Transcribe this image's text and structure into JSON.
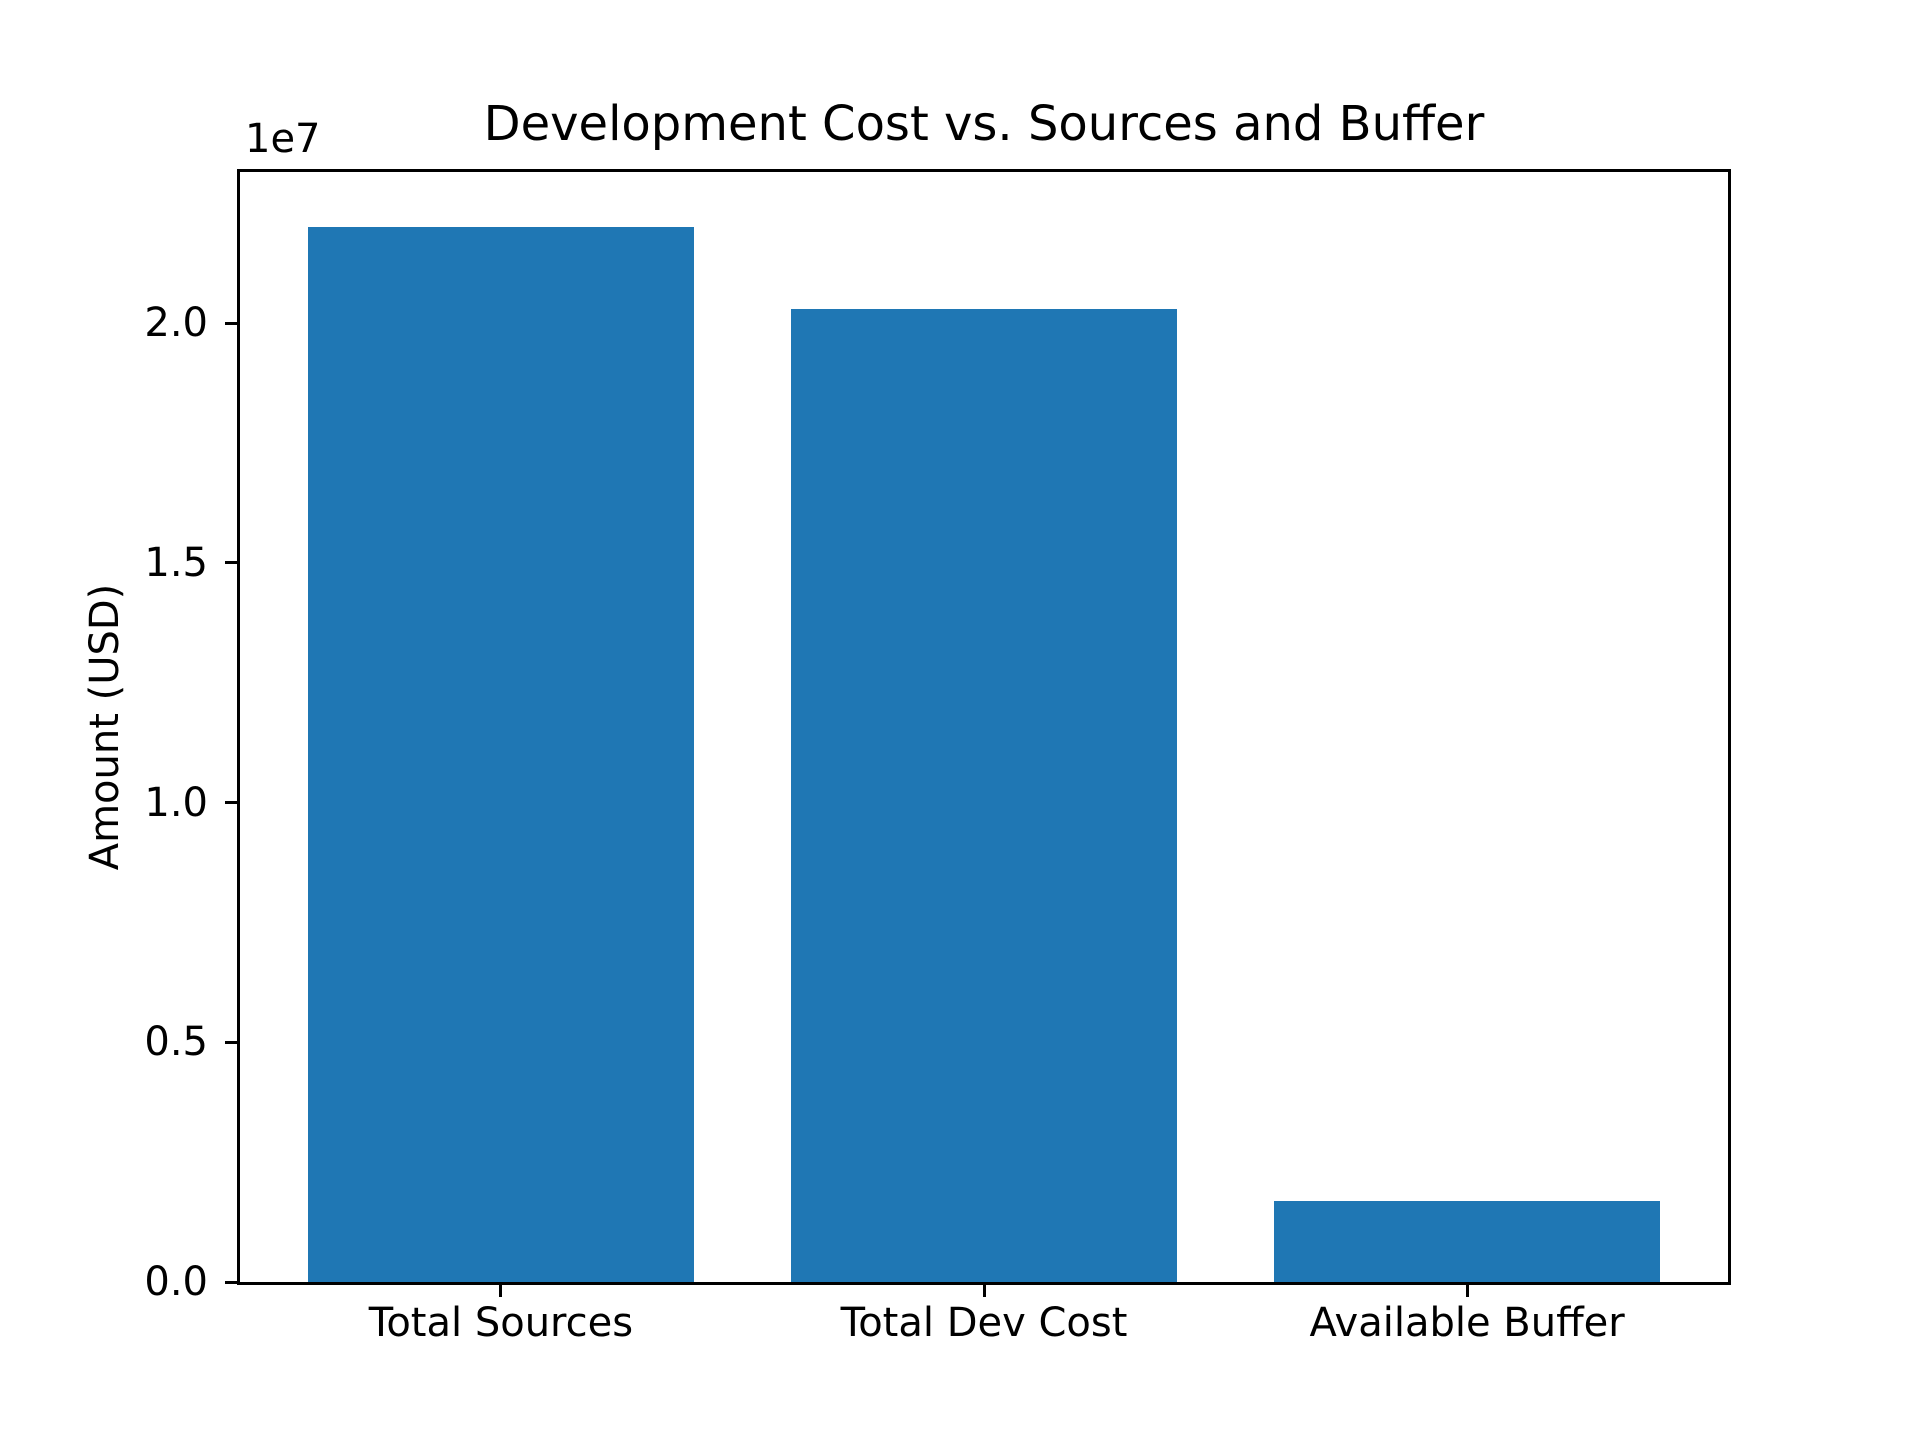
{
  "chart_data": {
    "type": "bar",
    "title": "Development Cost vs. Sources and Buffer",
    "xlabel": "",
    "ylabel": "Amount (USD)",
    "offset_text": "1e7",
    "categories": [
      "Total Sources",
      "Total Dev Cost",
      "Available Buffer"
    ],
    "values": [
      22000000,
      20300000,
      1700000
    ],
    "bar_color": "#1f77b4",
    "bar_width": 0.8,
    "xlim": [
      -0.54,
      2.54
    ],
    "ylim": [
      0,
      23150000
    ],
    "yticks": [
      {
        "value": 0,
        "label": "0.0"
      },
      {
        "value": 5000000,
        "label": "0.5"
      },
      {
        "value": 10000000,
        "label": "1.0"
      },
      {
        "value": 15000000,
        "label": "1.5"
      },
      {
        "value": 20000000,
        "label": "2.0"
      }
    ],
    "grid": false,
    "legend": null,
    "text_color": "#000000",
    "spine_color": "#000000",
    "background_color": "#ffffff"
  }
}
